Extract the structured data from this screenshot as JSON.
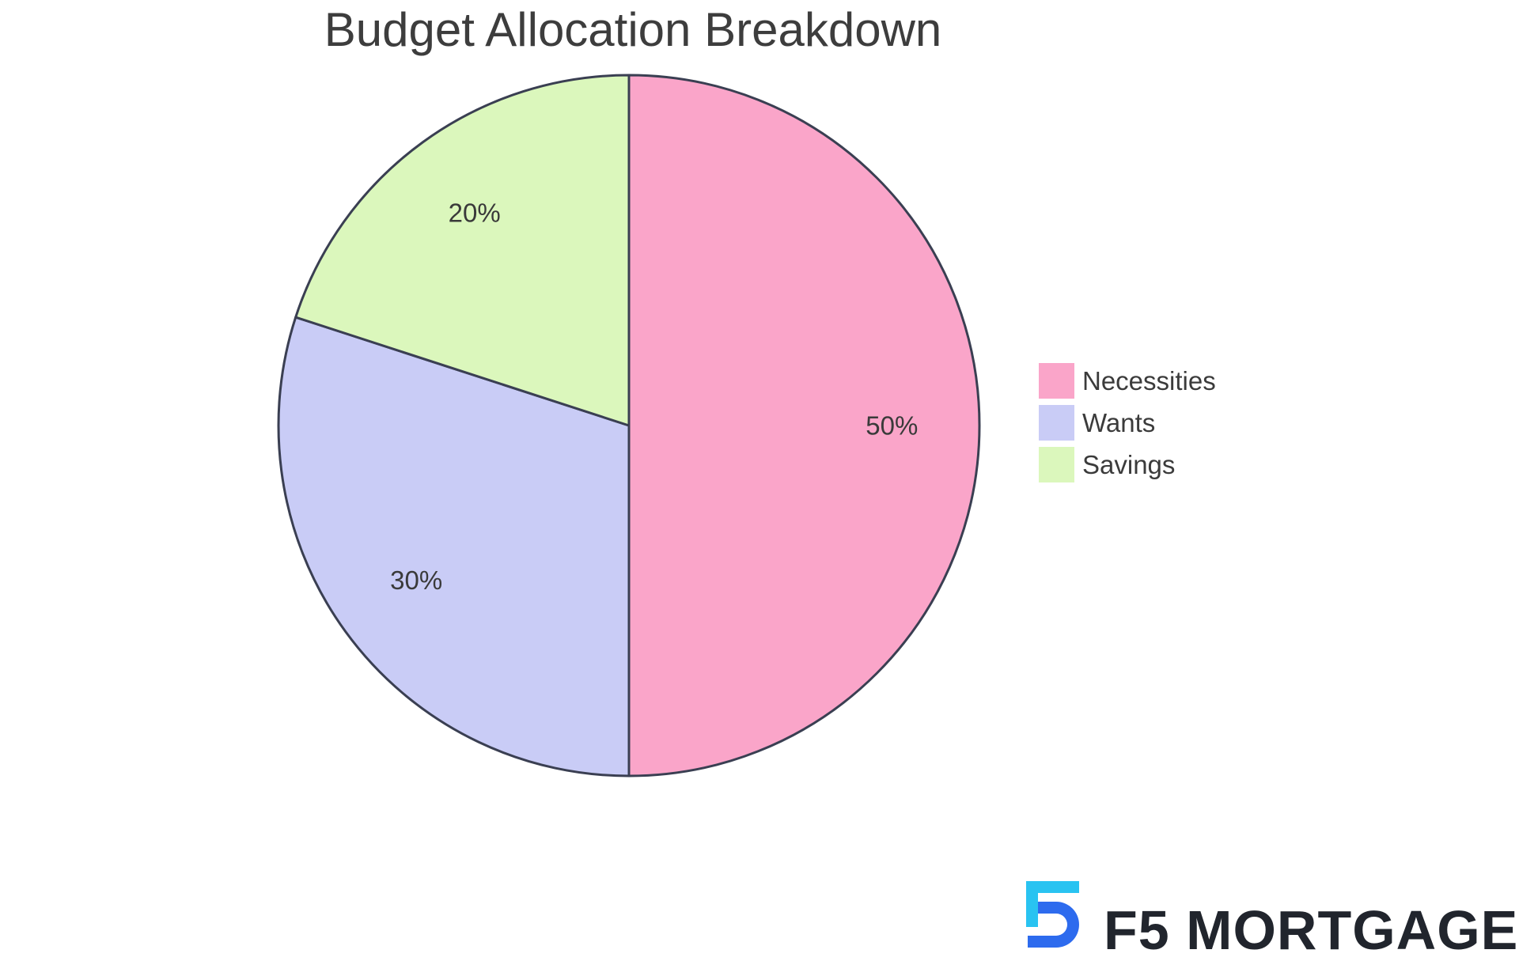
{
  "title": "Budget Allocation Breakdown",
  "chart_data": {
    "type": "pie",
    "title": "Budget Allocation Breakdown",
    "categories": [
      "Necessities",
      "Wants",
      "Savings"
    ],
    "values": [
      50,
      30,
      20
    ],
    "value_labels": [
      "50%",
      "30%",
      "20%"
    ],
    "colors": [
      "#faa5c9",
      "#c9ccf6",
      "#dbf7bc"
    ],
    "slice_border_color": "#3a3f52",
    "start_angle_deg": 0,
    "direction": "clockwise",
    "label_position": "inside",
    "label_radius_fraction": 0.75,
    "legend_position": "right",
    "background": "#ffffff"
  },
  "legend": {
    "items": [
      {
        "label": "Necessities",
        "color": "#faa5c9"
      },
      {
        "label": "Wants",
        "color": "#c9ccf6"
      },
      {
        "label": "Savings",
        "color": "#dbf7bc"
      }
    ]
  },
  "branding": {
    "logo_text": "F5 MORTGAGE",
    "logo_cyan": "#29c3f1",
    "logo_blue": "#2d6bee",
    "logo_text_color": "#21252d"
  }
}
